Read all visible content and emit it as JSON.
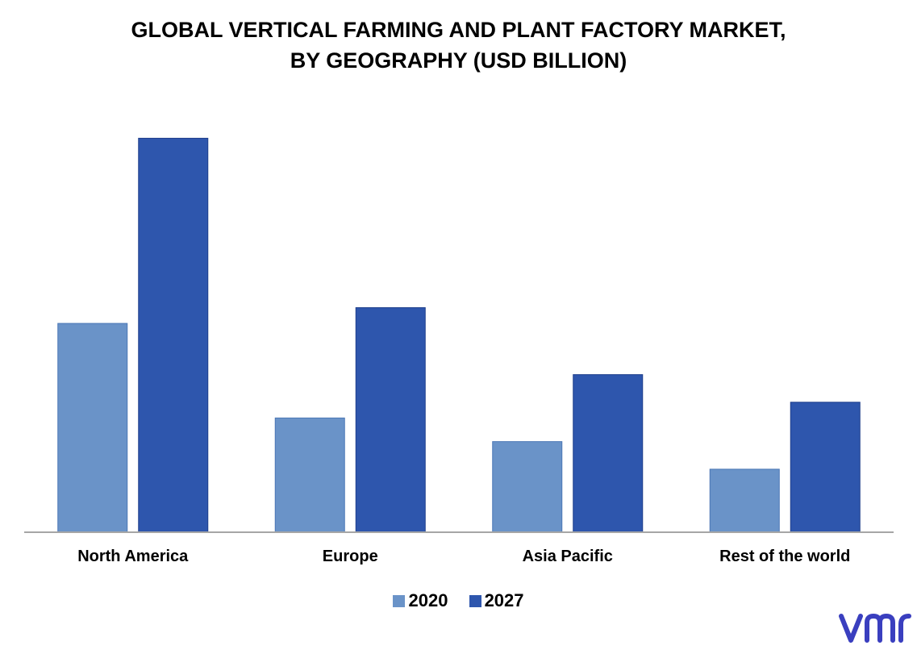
{
  "chart_data": {
    "type": "bar",
    "title": "GLOBAL VERTICAL FARMING AND PLANT FACTORY MARKET,",
    "subtitle": "BY GEOGRAPHY (USD BILLION)",
    "categories": [
      "North America",
      "Europe",
      "Asia Pacific",
      "Rest of the world"
    ],
    "series": [
      {
        "name": "2020",
        "color": "#6a93c8",
        "values": [
          5.3,
          2.9,
          2.3,
          1.6
        ]
      },
      {
        "name": "2027",
        "color": "#2e56ad",
        "values": [
          10.0,
          5.7,
          4.0,
          3.3
        ]
      }
    ],
    "ylim": [
      0,
      10.5
    ],
    "grid": false,
    "legend_position": "bottom-center"
  },
  "logo": {
    "text": "vmr",
    "color": "#3a3fbf",
    "icon": "vmr-logo"
  }
}
